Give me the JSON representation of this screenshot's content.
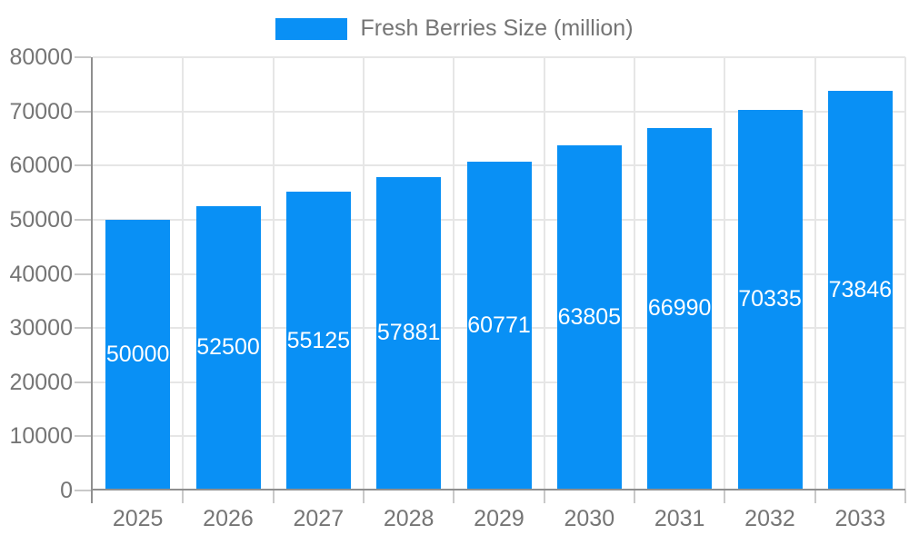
{
  "legend": {
    "label": "Fresh Berries Size (million)"
  },
  "colors": {
    "bar": "#0990f5",
    "axis_text": "#757575",
    "data_label_text": "#ffffff",
    "grid": "#e6e6e6",
    "axis_line": "#8f8f8f",
    "tick": "#c9c9c9",
    "background": "#ffffff"
  },
  "chart_data": {
    "type": "bar",
    "title": "Fresh Berries Size (million)",
    "categories": [
      "2025",
      "2026",
      "2027",
      "2028",
      "2029",
      "2030",
      "2031",
      "2032",
      "2033"
    ],
    "series": [
      {
        "name": "Fresh Berries Size (million)",
        "values": [
          50000,
          52500,
          55125,
          57881,
          60771,
          63805,
          66990,
          70335,
          73846
        ]
      }
    ],
    "data_labels_visible": true,
    "xlabel": "",
    "ylabel": "",
    "ylim": [
      0,
      80000
    ],
    "y_tick_step": 10000,
    "y_ticks": [
      0,
      10000,
      20000,
      30000,
      40000,
      50000,
      60000,
      70000,
      80000
    ],
    "grid": true,
    "legend_position": "top"
  }
}
